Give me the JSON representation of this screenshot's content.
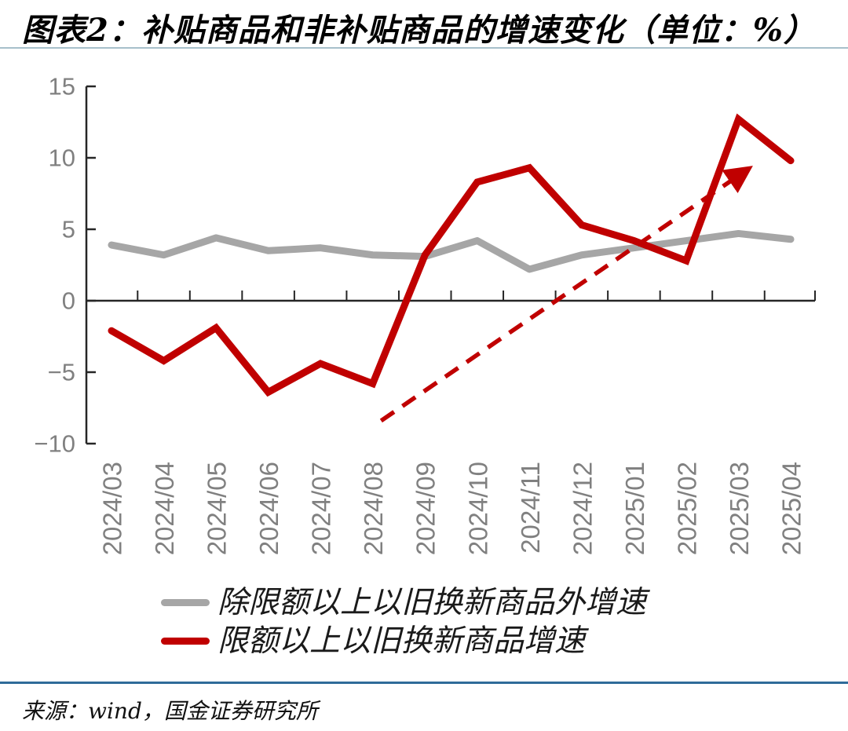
{
  "title": "图表2：补贴商品和非补贴商品的增速变化（单位：%）",
  "footer": {
    "source": "来源：wind，国金证券研究所"
  },
  "colors": {
    "red": "#c00000",
    "gray": "#a6a6a6",
    "axis": "#262626",
    "tick_label": "#808080",
    "title_rule": "#a7c0cb",
    "footer_rule": "#2f6b99"
  },
  "legend": [
    {
      "label": "除限额以上以旧换新商品外增速",
      "color": "#a6a6a6"
    },
    {
      "label": "限额以上以旧换新商品增速",
      "color": "#c00000"
    }
  ],
  "chart_data": {
    "type": "line",
    "title": "图表2：补贴商品和非补贴商品的增速变化（单位：%）",
    "xlabel": "",
    "ylabel": "",
    "ylim": [
      -10,
      15
    ],
    "y_ticks": [
      15,
      10,
      5,
      0,
      -5,
      -10
    ],
    "grid": false,
    "legend_position": "bottom",
    "categories": [
      "2024/03",
      "2024/04",
      "2024/05",
      "2024/06",
      "2024/07",
      "2024/08",
      "2024/09",
      "2024/10",
      "2024/11",
      "2024/12",
      "2025/01",
      "2025/02",
      "2025/03",
      "2025/04"
    ],
    "series": [
      {
        "name": "除限额以上以旧换新商品外增速",
        "color": "#a6a6a6",
        "style": "solid",
        "values": [
          3.9,
          3.2,
          4.4,
          3.5,
          3.7,
          3.2,
          3.1,
          4.2,
          2.2,
          3.2,
          3.7,
          4.2,
          4.7,
          4.3
        ]
      },
      {
        "name": "限额以上以旧换新商品增速",
        "color": "#c00000",
        "style": "solid",
        "values": [
          -2.1,
          -4.2,
          -1.9,
          -6.4,
          -4.4,
          -5.8,
          3.2,
          8.3,
          9.3,
          5.3,
          4.2,
          2.8,
          12.7,
          9.8
        ]
      }
    ],
    "trend_arrow": {
      "color": "#c00000",
      "style": "dashed",
      "arrow_at": "end",
      "from": {
        "index": 5.16,
        "value": -8.4
      },
      "to": {
        "index": 12.1,
        "value": 9.0
      }
    }
  }
}
